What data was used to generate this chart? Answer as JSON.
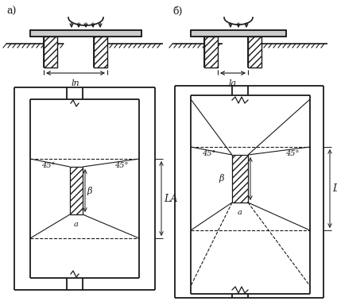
{
  "fig_width": 4.24,
  "fig_height": 3.79,
  "dpi": 100,
  "background": "#ffffff",
  "lc": "#1a1a1a",
  "lw": 1.3,
  "lw_t": 0.8,
  "label_a": "а)",
  "label_b": "б)",
  "dim_lp": "lп",
  "dim_la": "lа",
  "dim_LA": "LА",
  "dim_beta": "β",
  "dim_45": "45°",
  "dim_a_small": "а"
}
